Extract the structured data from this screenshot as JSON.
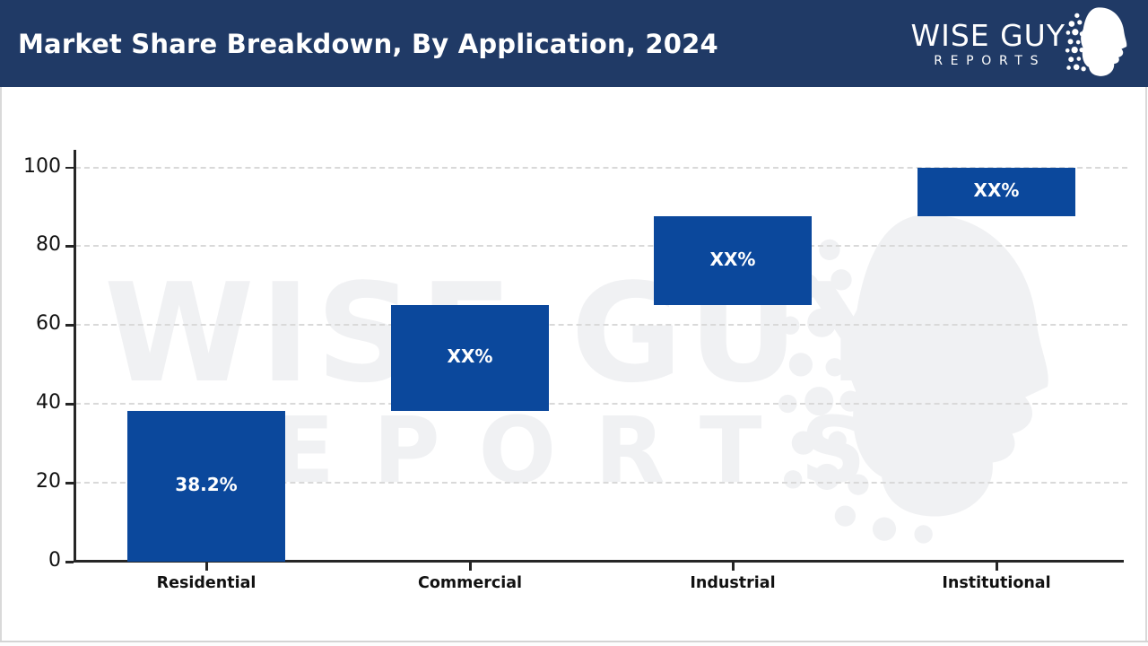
{
  "header": {
    "title": "Market Share Breakdown, By Application, 2024",
    "logo": {
      "brand_top": "WISE GUY",
      "brand_bottom": "REPORTS"
    },
    "background_color": "#203a66"
  },
  "watermark": {
    "line1": "WISE GUY",
    "line2": "REPORTS"
  },
  "chart_data": {
    "type": "bar",
    "subtype": "waterfall",
    "title": "Market Share Breakdown, By Application, 2024",
    "categories": [
      "Residential",
      "Commercial",
      "Industrial",
      "Institutional"
    ],
    "segments": [
      {
        "category": "Residential",
        "start": 0,
        "end": 38.2,
        "label": "38.2%"
      },
      {
        "category": "Commercial",
        "start": 38.2,
        "end": 65,
        "label": "XX%"
      },
      {
        "category": "Industrial",
        "start": 65,
        "end": 87.5,
        "label": "XX%"
      },
      {
        "category": "Institutional",
        "start": 87.5,
        "end": 100,
        "label": "XX%"
      }
    ],
    "xlabel": "",
    "ylabel": "",
    "ylim": [
      0,
      104
    ],
    "yticks": [
      0,
      20,
      40,
      60,
      80,
      100
    ],
    "grid": "horizontal-dashed",
    "legend": "none",
    "bar_color": "#0b489c",
    "bar_label_color": "#ffffff",
    "axis_color": "#262626",
    "gridline_color": "#d9d9d9",
    "tick_label_color": "#111111"
  }
}
